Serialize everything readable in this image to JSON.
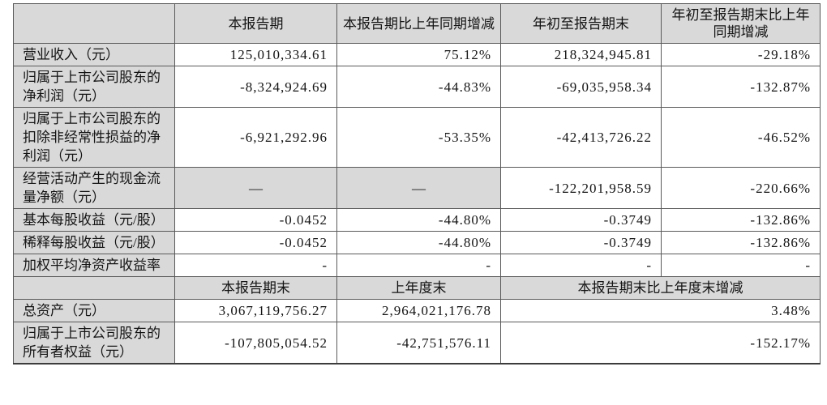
{
  "colors": {
    "header_bg": "#d9d9d9",
    "border": "#5a5a5a",
    "border_heavy": "#3c3c3c",
    "text": "#141414",
    "page_bg": "#ffffff"
  },
  "table": {
    "columns": [
      "",
      "本报告期",
      "本报告期比上年同期增减",
      "年初至报告期末",
      "年初至报告期末比上年同期增减"
    ],
    "section1_rows": [
      {
        "label": "营业收入（元）",
        "values": [
          "125,010,334.61",
          "75.12%",
          "218,324,945.81",
          "-29.18%"
        ]
      },
      {
        "label": "归属于上市公司股东的净利润（元）",
        "values": [
          "-8,324,924.69",
          "-44.83%",
          "-69,035,958.34",
          "-132.87%"
        ]
      },
      {
        "label": "归属于上市公司股东的扣除非经常性损益的净利润（元）",
        "values": [
          "-6,921,292.96",
          "-53.35%",
          "-42,413,726.22",
          "-46.52%"
        ]
      },
      {
        "label": "经营活动产生的现金流量净额（元）",
        "values": [
          "—",
          "—",
          "-122,201,958.59",
          "-220.66%"
        ],
        "center": [
          true,
          true,
          false,
          false
        ],
        "shaded": [
          true,
          true,
          false,
          false
        ]
      },
      {
        "label": "基本每股收益（元/股）",
        "values": [
          "-0.0452",
          "-44.80%",
          "-0.3749",
          "-132.86%"
        ]
      },
      {
        "label": "稀释每股收益（元/股）",
        "values": [
          "-0.0452",
          "-44.80%",
          "-0.3749",
          "-132.86%"
        ]
      },
      {
        "label": "加权平均净资产收益率",
        "values": [
          "-",
          "-",
          "-",
          "-"
        ]
      }
    ],
    "section2_header": [
      "",
      "本报告期末",
      "上年度末",
      {
        "text": "本报告期末比上年度末增减",
        "colspan": 2
      }
    ],
    "section2_rows": [
      {
        "label": "总资产（元）",
        "values": [
          "3,067,119,756.27",
          "2,964,021,176.78",
          {
            "text": "3.48%",
            "colspan": 2
          }
        ]
      },
      {
        "label": "归属于上市公司股东的所有者权益（元）",
        "values": [
          "-107,805,054.52",
          "-42,751,576.11",
          {
            "text": "-152.17%",
            "colspan": 2
          }
        ]
      }
    ]
  }
}
